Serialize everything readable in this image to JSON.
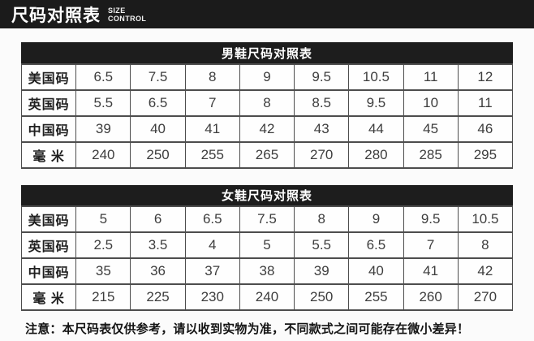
{
  "header": {
    "title": "尺码对照表",
    "subtitle_line1": "SIZE",
    "subtitle_line2": "CONTROL"
  },
  "tables": [
    {
      "title": "男鞋尺码对照表",
      "rows": [
        {
          "label": "美国码",
          "values": [
            "6.5",
            "7.5",
            "8",
            "9",
            "9.5",
            "10.5",
            "11",
            "12"
          ]
        },
        {
          "label": "英国码",
          "values": [
            "5.5",
            "6.5",
            "7",
            "8",
            "8.5",
            "9.5",
            "10",
            "11"
          ]
        },
        {
          "label": "中国码",
          "values": [
            "39",
            "40",
            "41",
            "42",
            "43",
            "44",
            "45",
            "46"
          ]
        },
        {
          "label": "毫 米",
          "values": [
            "240",
            "250",
            "255",
            "265",
            "270",
            "280",
            "285",
            "295"
          ]
        }
      ]
    },
    {
      "title": "女鞋尺码对照表",
      "rows": [
        {
          "label": "美国码",
          "values": [
            "5",
            "6",
            "6.5",
            "7.5",
            "8",
            "9",
            "9.5",
            "10.5"
          ]
        },
        {
          "label": "英国码",
          "values": [
            "2.5",
            "3.5",
            "4",
            "5",
            "5.5",
            "6.5",
            "7",
            "8"
          ]
        },
        {
          "label": "中国码",
          "values": [
            "35",
            "36",
            "37",
            "38",
            "39",
            "40",
            "41",
            "42"
          ]
        },
        {
          "label": "毫 米",
          "values": [
            "215",
            "225",
            "230",
            "240",
            "250",
            "255",
            "260",
            "270"
          ]
        }
      ]
    }
  ],
  "footer": {
    "note": "注意：本尺码表仅供参考，请以收到实物为准，不同款式之间可能存在微小差异！"
  },
  "colors": {
    "banner_bg": "#1b1b1b",
    "table_header_bg": "#1d1d1d",
    "table_border": "#4d4d4d",
    "cell_text": "#3d3d3d",
    "label_text": "#1f1f1f",
    "banner_text": "#ffffff"
  }
}
